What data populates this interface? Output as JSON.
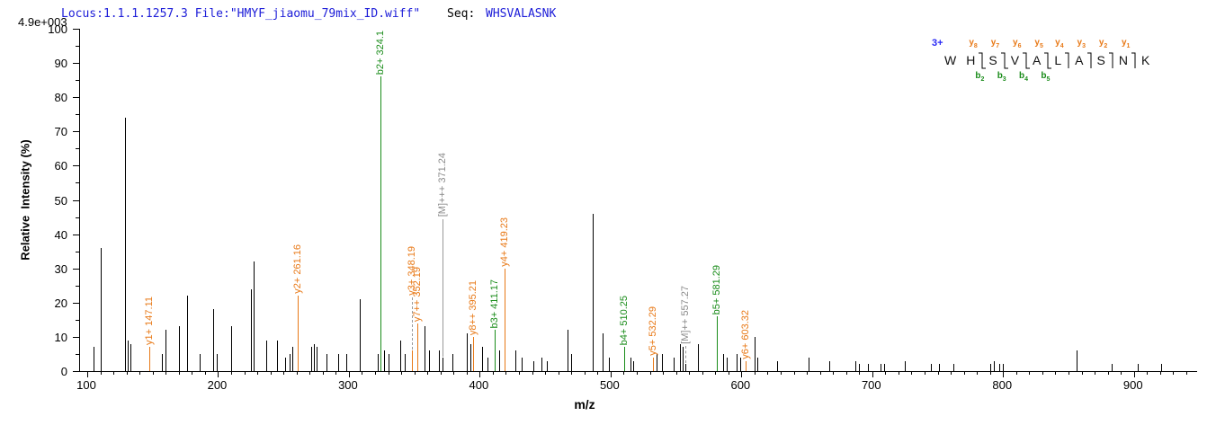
{
  "header": {
    "locus_file": "Locus:1.1.1.1257.3 File:\"HMYF_jiaomu_79mix_ID.wiff\"",
    "seq_label": "Seq:",
    "seq_value": "WHSVALASNK"
  },
  "base_peak_label": "4.9e+003",
  "colors": {
    "y_ion": "#E87917",
    "b_ion": "#1A8C1A",
    "precursor_label": "#8A8A8A",
    "leader_line": "#999999",
    "peak": "#000000",
    "header_blue": "#1C1CD8",
    "charge_blue": "#2929F5",
    "axis": "#000000"
  },
  "ladder": {
    "charge": "3+",
    "residues": [
      "W",
      "H",
      "S",
      "V",
      "A",
      "L",
      "A",
      "S",
      "N",
      "K"
    ],
    "cleavages": [
      {
        "after": 2,
        "y": "y8",
        "b": "b2"
      },
      {
        "after": 3,
        "y": "y7",
        "b": "b3"
      },
      {
        "after": 4,
        "y": "y6",
        "b": "b4"
      },
      {
        "after": 5,
        "y": "y5",
        "b": "b5"
      },
      {
        "after": 6,
        "y": "y4"
      },
      {
        "after": 7,
        "y": "y3"
      },
      {
        "after": 8,
        "y": "y2"
      },
      {
        "after": 9,
        "y": "y1"
      }
    ]
  },
  "chart_data": {
    "type": "bar",
    "variant": "centroid-mass-spectrum",
    "title": "",
    "xlabel": "m/z",
    "ylabel": "Relative  Intensity (%)",
    "xlim": [
      94.5,
      948.3
    ],
    "ylim": [
      0,
      100
    ],
    "x_major_ticks": [
      100,
      200,
      300,
      400,
      500,
      600,
      700,
      800,
      900
    ],
    "x_minor_step": 10,
    "y_major_step": 10,
    "y_minor_step": 5,
    "grid": false,
    "base_peak_intensity": "4.9e+003",
    "annotated_peaks": [
      {
        "mz": 147.11,
        "intensity": 7,
        "ion": "y1+",
        "label": "y1+ 147.11",
        "series": "y"
      },
      {
        "mz": 261.16,
        "intensity": 22,
        "ion": "y2+",
        "label": "y2+ 261.16",
        "series": "y"
      },
      {
        "mz": 324.1,
        "intensity": 86,
        "ion": "b2+",
        "label": "b2+ 324.1",
        "series": "b"
      },
      {
        "mz": 348.19,
        "intensity": 6,
        "ion": "y3+",
        "label": "y3+ 348.19",
        "series": "y",
        "label_raise": 22,
        "leader": "dashed"
      },
      {
        "mz": 352.19,
        "intensity": 14,
        "ion": "y7++",
        "label": "y7++ 352.19",
        "series": "y"
      },
      {
        "mz": 371.24,
        "intensity": 4,
        "ion": "[M]+++",
        "label": "[M]+++ 371.24",
        "series": "precursor",
        "label_raise": 45,
        "leader": "solid"
      },
      {
        "mz": 395.21,
        "intensity": 10,
        "ion": "y8++",
        "label": "y8++ 395.21",
        "series": "y"
      },
      {
        "mz": 411.17,
        "intensity": 12,
        "ion": "b3+",
        "label": "b3+ 411.17",
        "series": "b"
      },
      {
        "mz": 419.23,
        "intensity": 30,
        "ion": "y4+",
        "label": "y4+ 419.23",
        "series": "y"
      },
      {
        "mz": 510.25,
        "intensity": 7,
        "ion": "b4+",
        "label": "b4+ 510.25",
        "series": "b"
      },
      {
        "mz": 532.29,
        "intensity": 4,
        "ion": "y5+",
        "label": "y5+ 532.29",
        "series": "y"
      },
      {
        "mz": 557.27,
        "intensity": 2,
        "ion": "[M]++",
        "label": "[M]++ 557.27",
        "series": "precursor",
        "label_raise": 8,
        "leader": "dashed"
      },
      {
        "mz": 581.29,
        "intensity": 16,
        "ion": "b5+",
        "label": "b5+ 581.29",
        "series": "b"
      },
      {
        "mz": 603.32,
        "intensity": 3,
        "ion": "y6+",
        "label": "y6+ 603.32",
        "series": "y"
      }
    ],
    "peaks": [
      [
        105,
        7
      ],
      [
        110,
        36
      ],
      [
        129,
        74
      ],
      [
        131,
        9
      ],
      [
        133,
        8
      ],
      [
        157,
        5
      ],
      [
        160,
        12
      ],
      [
        170,
        13
      ],
      [
        176,
        22
      ],
      [
        186,
        5
      ],
      [
        196,
        18
      ],
      [
        199,
        5
      ],
      [
        210,
        13
      ],
      [
        225,
        24
      ],
      [
        227,
        32
      ],
      [
        237,
        9
      ],
      [
        245,
        9
      ],
      [
        251,
        4
      ],
      [
        255,
        5
      ],
      [
        257,
        7
      ],
      [
        271,
        7
      ],
      [
        273,
        8
      ],
      [
        275,
        7
      ],
      [
        283,
        5
      ],
      [
        292,
        5
      ],
      [
        298,
        5
      ],
      [
        308,
        21
      ],
      [
        322,
        5
      ],
      [
        327,
        6
      ],
      [
        330,
        5
      ],
      [
        339,
        9
      ],
      [
        343,
        5
      ],
      [
        358,
        13
      ],
      [
        361,
        6
      ],
      [
        369,
        6
      ],
      [
        379,
        5
      ],
      [
        390,
        11
      ],
      [
        393,
        8
      ],
      [
        402,
        7
      ],
      [
        406,
        4
      ],
      [
        415,
        6
      ],
      [
        427,
        6
      ],
      [
        432,
        4
      ],
      [
        441,
        3
      ],
      [
        447,
        4
      ],
      [
        451,
        3
      ],
      [
        467,
        12
      ],
      [
        470,
        5
      ],
      [
        486,
        46
      ],
      [
        494,
        11
      ],
      [
        499,
        4
      ],
      [
        515,
        4
      ],
      [
        517,
        3
      ],
      [
        535,
        5
      ],
      [
        539,
        5
      ],
      [
        548,
        4
      ],
      [
        553,
        8
      ],
      [
        555,
        7
      ],
      [
        567,
        8
      ],
      [
        586,
        5
      ],
      [
        589,
        4
      ],
      [
        596,
        5
      ],
      [
        599,
        4
      ],
      [
        610,
        10
      ],
      [
        612,
        4
      ],
      [
        627,
        3
      ],
      [
        651,
        4
      ],
      [
        667,
        3
      ],
      [
        687,
        3
      ],
      [
        690,
        2
      ],
      [
        697,
        2
      ],
      [
        706,
        2
      ],
      [
        709,
        2
      ],
      [
        725,
        3
      ],
      [
        745,
        2
      ],
      [
        751,
        2
      ],
      [
        762,
        2
      ],
      [
        790,
        2
      ],
      [
        793,
        3
      ],
      [
        797,
        2
      ],
      [
        800,
        2
      ],
      [
        856,
        6
      ],
      [
        883,
        2
      ],
      [
        903,
        2
      ],
      [
        921,
        2
      ]
    ]
  }
}
